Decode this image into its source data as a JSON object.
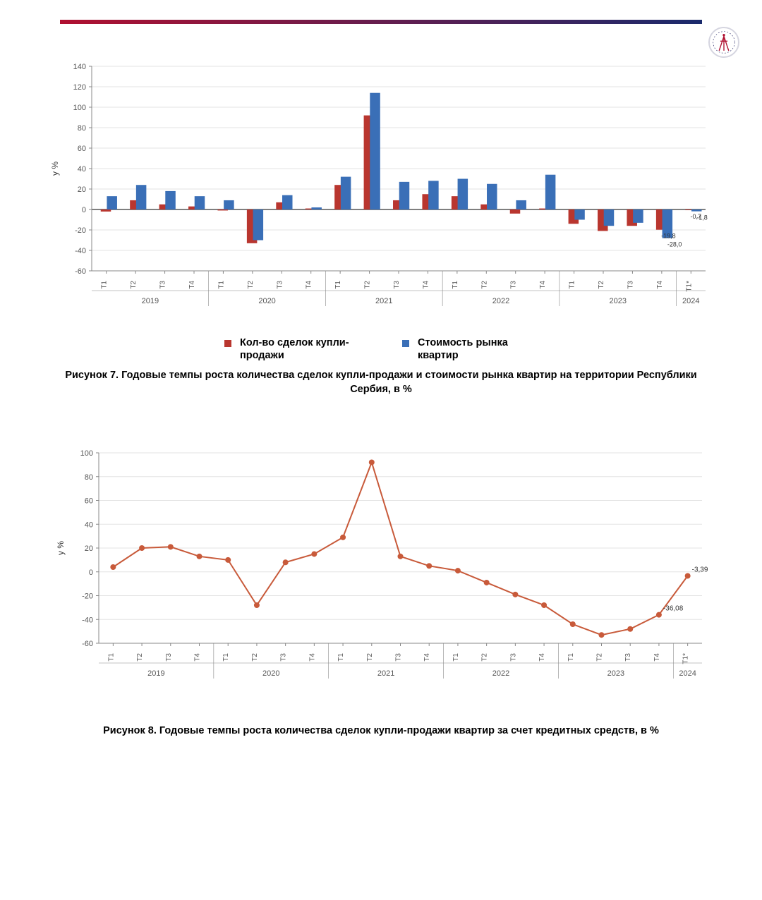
{
  "header": {
    "bar_gradient_from": "#b01030",
    "bar_gradient_to": "#1a2a6c"
  },
  "chart7": {
    "type": "bar",
    "y_label": "у %",
    "y_label_fontsize": 12,
    "ylim": [
      -60,
      140
    ],
    "ytick_step": 20,
    "yticks": [
      -60,
      -40,
      -20,
      0,
      20,
      40,
      60,
      80,
      100,
      120,
      140
    ],
    "tick_fontsize": 11,
    "tick_color": "#555555",
    "axis_color": "#888888",
    "grid_color": "#e3e3e3",
    "background_color": "#ffffff",
    "bar_width": 0.35,
    "year_groups": [
      {
        "year": "2019",
        "quarters": [
          "T1",
          "T2",
          "T3",
          "T4"
        ]
      },
      {
        "year": "2020",
        "quarters": [
          "T1",
          "T2",
          "T3",
          "T4"
        ]
      },
      {
        "year": "2021",
        "quarters": [
          "T1",
          "T2",
          "T3",
          "T4"
        ]
      },
      {
        "year": "2022",
        "quarters": [
          "T1",
          "T2",
          "T3",
          "T4"
        ]
      },
      {
        "year": "2023",
        "quarters": [
          "T1",
          "T2",
          "T3",
          "T4"
        ]
      },
      {
        "year": "2024",
        "quarters": [
          "T1*"
        ]
      }
    ],
    "series": [
      {
        "name": "Кол-во сделок купли-продажи",
        "color": "#b9362f",
        "values": [
          -2,
          9,
          5,
          3,
          -1,
          -33,
          7,
          1,
          24,
          92,
          9,
          15,
          13,
          5,
          -4,
          1,
          -14,
          -21,
          -16,
          -19.8,
          -0.7
        ]
      },
      {
        "name": "Стоимость рынка квартир",
        "color": "#3a6fb7",
        "values": [
          13,
          24,
          18,
          13,
          9,
          -30,
          14,
          2,
          32,
          114,
          27,
          28,
          30,
          25,
          9,
          34,
          -10,
          -16,
          -13,
          -28.0,
          -1.8
        ]
      }
    ],
    "data_labels": [
      {
        "index": 19,
        "series": 0,
        "text": "-19,8"
      },
      {
        "index": 19,
        "series": 1,
        "text": "-28,0"
      },
      {
        "index": 20,
        "series": 0,
        "text": "-0,7"
      },
      {
        "index": 20,
        "series": 1,
        "text": "-1,8"
      }
    ],
    "legend": {
      "items": [
        {
          "color": "#b9362f",
          "label": "Кол-во сделок купли-продажи"
        },
        {
          "color": "#3a6fb7",
          "label": "Стоимость рынка квартир"
        }
      ]
    },
    "caption": "Рисунок 7. Годовые темпы роста количества сделок купли-продажи и стоимости рынка квартир на территории Республики Сербия, в %"
  },
  "chart8": {
    "type": "line",
    "y_label": "у %",
    "y_label_fontsize": 12,
    "ylim": [
      -60,
      100
    ],
    "ytick_step": 20,
    "yticks": [
      -60,
      -40,
      -20,
      0,
      20,
      40,
      60,
      80,
      100
    ],
    "tick_fontsize": 11,
    "tick_color": "#555555",
    "axis_color": "#888888",
    "grid_color": "#e3e3e3",
    "background_color": "#ffffff",
    "line_color": "#c85a3a",
    "line_width": 2,
    "marker_style": "circle",
    "marker_size": 4,
    "marker_color": "#c85a3a",
    "year_groups": [
      {
        "year": "2019",
        "quarters": [
          "T1",
          "T2",
          "T3",
          "T4"
        ]
      },
      {
        "year": "2020",
        "quarters": [
          "T1",
          "T2",
          "T3",
          "T4"
        ]
      },
      {
        "year": "2021",
        "quarters": [
          "T1",
          "T2",
          "T3",
          "T4"
        ]
      },
      {
        "year": "2022",
        "quarters": [
          "T1",
          "T2",
          "T3",
          "T4"
        ]
      },
      {
        "year": "2023",
        "quarters": [
          "T1",
          "T2",
          "T3",
          "T4"
        ]
      },
      {
        "year": "2024",
        "quarters": [
          "T1*"
        ]
      }
    ],
    "values": [
      4,
      20,
      21,
      13,
      10,
      -28,
      8,
      15,
      29,
      92,
      13,
      5,
      1,
      -9,
      -19,
      -28,
      -44,
      -53,
      -48,
      -36.08,
      -3.39
    ],
    "data_labels": [
      {
        "index": 19,
        "text": "-36,08"
      },
      {
        "index": 20,
        "text": "-3,39"
      }
    ],
    "caption": "Рисунок 8. Годовые темпы роста количества сделок купли-продажи квартир за счет кредитных средств, в %"
  }
}
